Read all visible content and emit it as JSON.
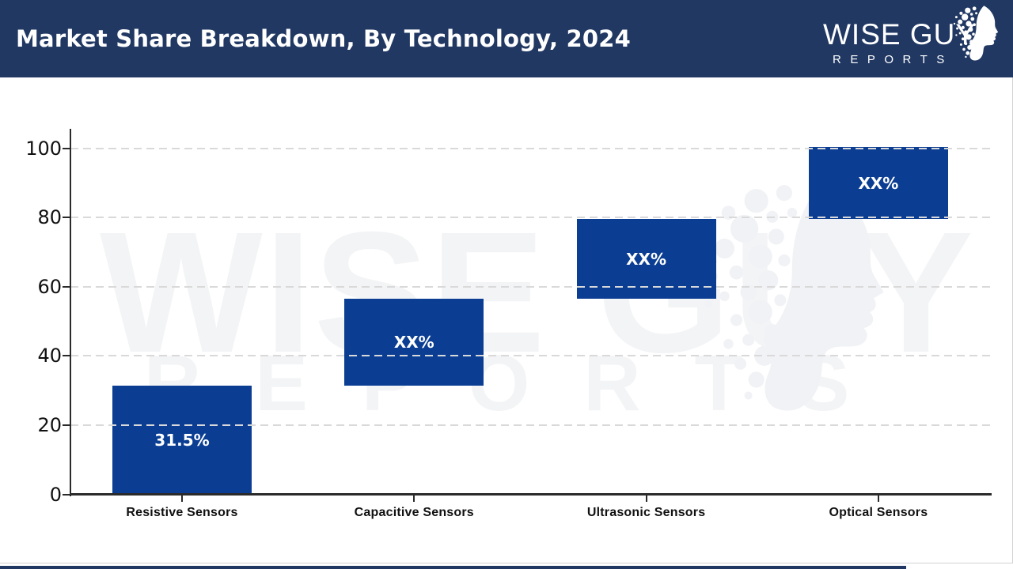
{
  "header": {
    "title": "Market Share Breakdown, By Technology, 2024",
    "logo": {
      "brand": "WISE GUY",
      "sub": "REPORTS"
    }
  },
  "watermark": {
    "brand": "WISE GUY",
    "sub": "REPORTS"
  },
  "chart_data": {
    "type": "bar",
    "variant": "waterfall",
    "title": "Market Share Breakdown, By Technology, 2024",
    "categories": [
      "Resistive Sensors",
      "Capacitive Sensors",
      "Ultrasonic Sensors",
      "Optical Sensors"
    ],
    "bars": [
      {
        "category": "Resistive Sensors",
        "start": 0,
        "end": 31.5,
        "label": "31.5%"
      },
      {
        "category": "Capacitive Sensors",
        "start": 31.5,
        "end": 56.5,
        "label": "XX%"
      },
      {
        "category": "Ultrasonic Sensors",
        "start": 56.5,
        "end": 79.5,
        "label": "XX%"
      },
      {
        "category": "Optical Sensors",
        "start": 79.5,
        "end": 100.3,
        "label": "XX%"
      }
    ],
    "y_ticks": [
      0,
      20,
      40,
      60,
      80,
      100
    ],
    "ylim": [
      0,
      105.5
    ],
    "xlabel": "",
    "ylabel": "",
    "grid": {
      "axis": "y",
      "style": "dashed"
    },
    "legend": "none"
  },
  "colors": {
    "header_bg": "#213863",
    "footer_bg": "#213863",
    "bar": "#0b3e93",
    "axis": "#2a2a2a",
    "grid": "#d9d9d9",
    "watermark": "#f3f4f6",
    "frame_border": "#d2d2d2",
    "title_text": "#ffffff",
    "tick_text": "#111111"
  }
}
